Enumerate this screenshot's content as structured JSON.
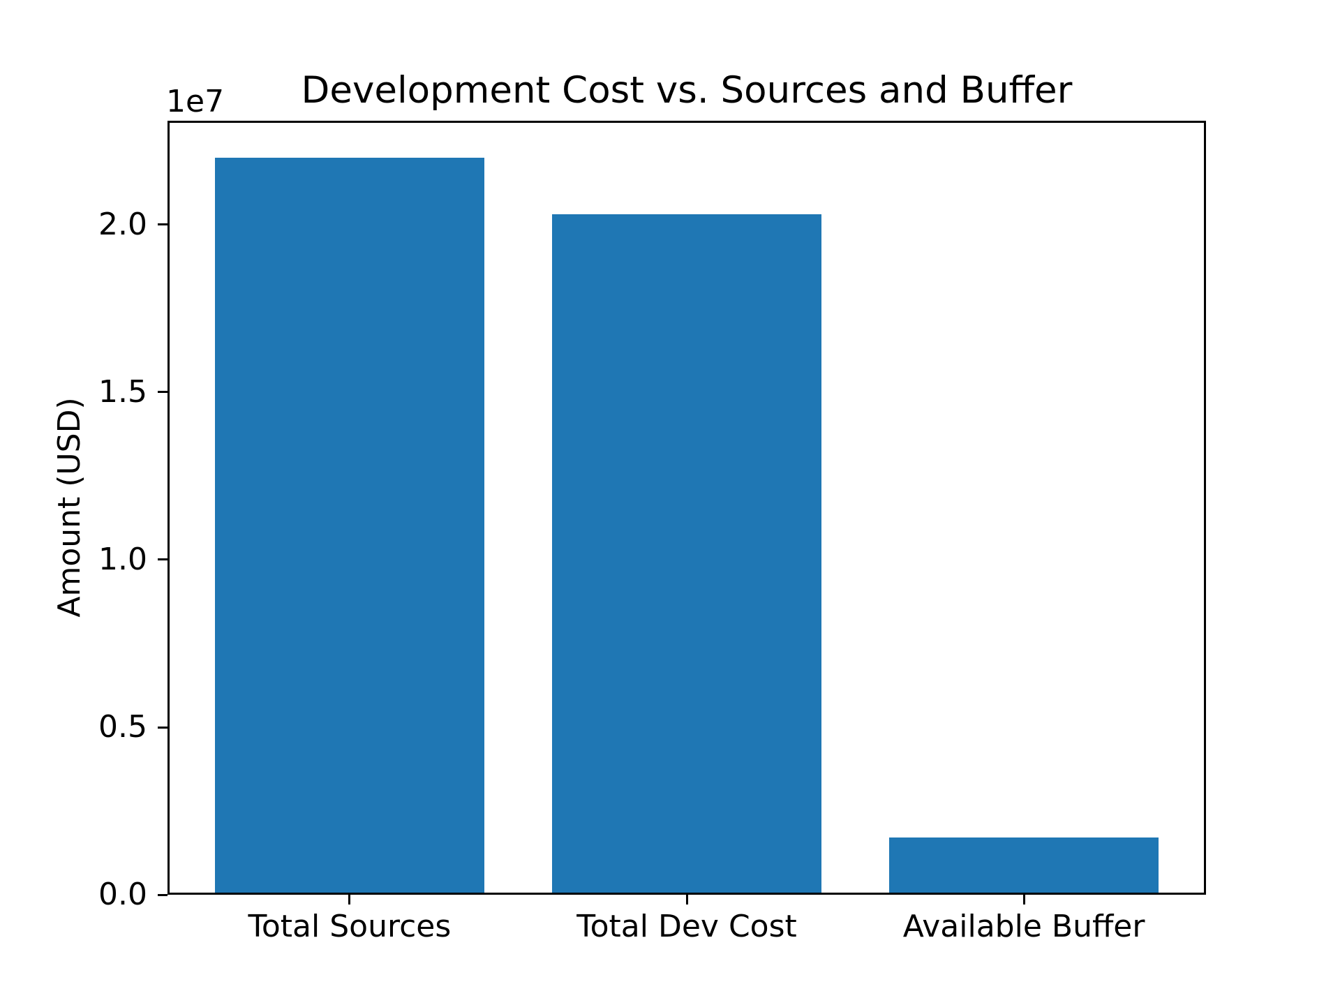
{
  "figure": {
    "background": "#ffffff",
    "text_color": "#000000"
  },
  "chart_data": {
    "type": "bar",
    "title": "Development Cost vs. Sources and Buffer",
    "categories": [
      "Total Sources",
      "Total Dev Cost",
      "Available Buffer"
    ],
    "values": [
      22000000,
      20300000,
      1700000
    ],
    "xlabel": "",
    "ylabel": "Amount (USD)",
    "ylim": [
      0,
      23100000
    ],
    "bar_color": "#1f77b4",
    "bar_width_fraction": 0.8,
    "y_offset_text": "1e7",
    "y_ticks": [
      {
        "value": 0,
        "label": "0.0"
      },
      {
        "value": 5000000,
        "label": "0.5"
      },
      {
        "value": 10000000,
        "label": "1.0"
      },
      {
        "value": 15000000,
        "label": "1.5"
      },
      {
        "value": 20000000,
        "label": "2.0"
      }
    ],
    "grid": false,
    "legend": false
  }
}
